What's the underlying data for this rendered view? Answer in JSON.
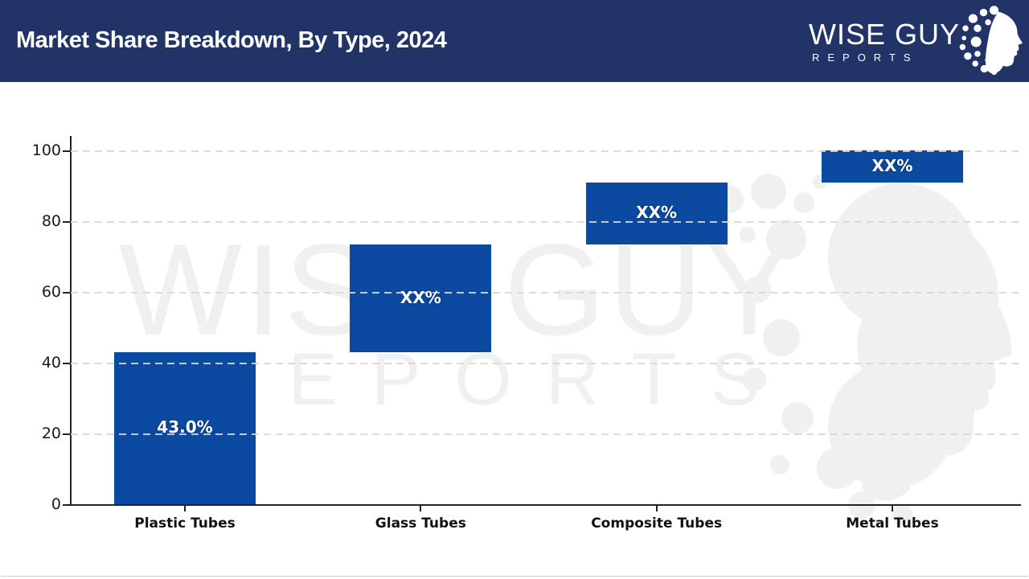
{
  "header": {
    "title": "Market Share Breakdown, By Type, 2024",
    "logo": {
      "line1": "WISE GUY",
      "line2": "REPORTS"
    },
    "bg_color": "#223467"
  },
  "watermark": {
    "line1": "WISE GUY",
    "line2": "REPORTS"
  },
  "chart_data": {
    "type": "bar",
    "subtype": "waterfall",
    "title": "Market Share Breakdown, By Type, 2024",
    "categories": [
      "Plastic Tubes",
      "Glass Tubes",
      "Composite Tubes",
      "Metal Tubes"
    ],
    "segments": [
      {
        "category": "Plastic Tubes",
        "start": 0,
        "end": 43.0,
        "label": "43.0%"
      },
      {
        "category": "Glass Tubes",
        "start": 43.0,
        "end": 73.5,
        "label": "XX%"
      },
      {
        "category": "Composite Tubes",
        "start": 73.5,
        "end": 91.0,
        "label": "XX%"
      },
      {
        "category": "Metal Tubes",
        "start": 91.0,
        "end": 100.0,
        "label": "XX%"
      }
    ],
    "yticks": [
      0,
      20,
      40,
      60,
      80,
      100
    ],
    "ylim": [
      0,
      104
    ],
    "xlabel": "",
    "ylabel": "",
    "bar_color": "#0c4aa2",
    "bar_label_color": "#ffffff",
    "grid": {
      "axis": "y",
      "style": "dashed",
      "color": "#d8d8d8",
      "on_top": true
    },
    "legend": "none"
  }
}
